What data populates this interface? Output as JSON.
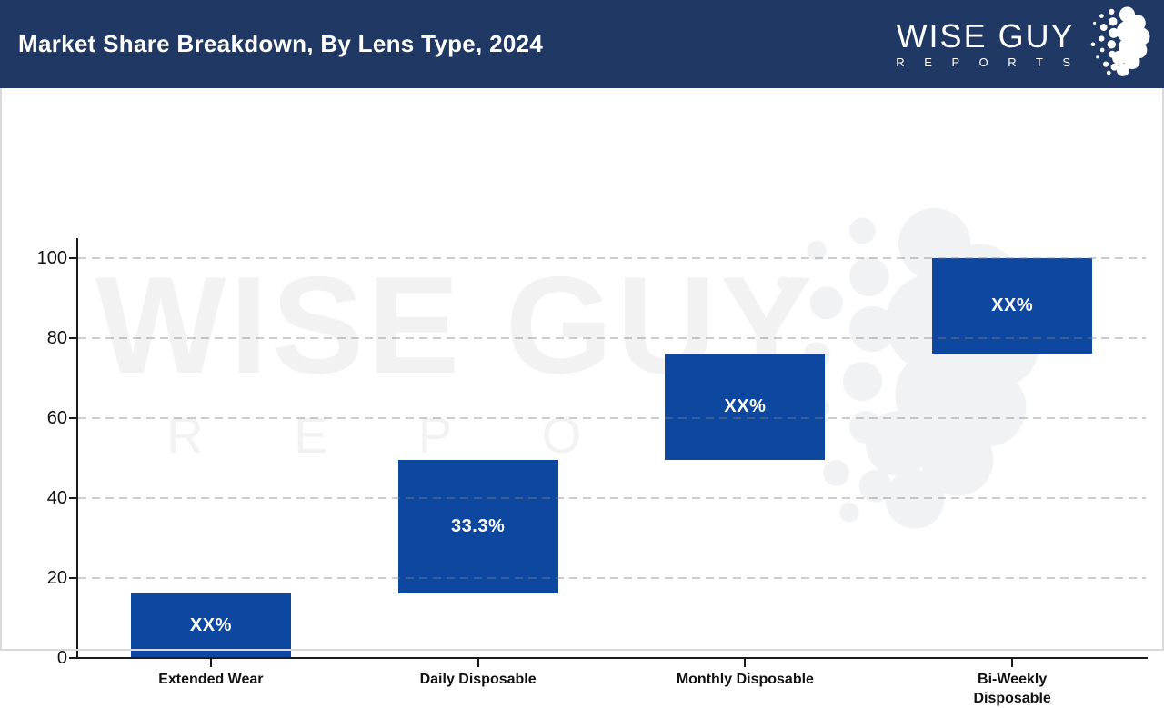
{
  "header": {
    "title": "Market Share Breakdown, By Lens Type, 2024",
    "logo": {
      "name": "WISE GUY",
      "sub": "R E P O R T S"
    }
  },
  "watermark": {
    "line1": "WISE GUY",
    "line2": "R E P O R T S"
  },
  "colors": {
    "header_bg": "#1f3864",
    "bar": "#0d47a0",
    "bar_label": "#ffffff",
    "watermark": "#f2f2f3",
    "grid": "rgba(128,128,128,0.4)"
  },
  "chart_data": {
    "type": "bar",
    "subtype": "floating-waterfall",
    "title": "Market Share Breakdown, By Lens Type, 2024",
    "categories": [
      "Extended Wear",
      "Daily Disposable",
      "Monthly Disposable",
      "Bi-Weekly\nDisposable"
    ],
    "segments": [
      {
        "category": "Extended Wear",
        "label": "XX%",
        "start": 0,
        "end": 16.1
      },
      {
        "category": "Daily Disposable",
        "label": "33.3%",
        "start": 16.1,
        "end": 49.4
      },
      {
        "category": "Monthly Disposable",
        "label": "XX%",
        "start": 49.4,
        "end": 76.1
      },
      {
        "category": "Bi-Weekly Disposable",
        "label": "XX%",
        "start": 76.1,
        "end": 100
      }
    ],
    "yticks": [
      0,
      20,
      40,
      60,
      80,
      100
    ],
    "ylim": [
      0,
      100
    ],
    "grid": "dashed-horizontal",
    "legend": "none"
  }
}
